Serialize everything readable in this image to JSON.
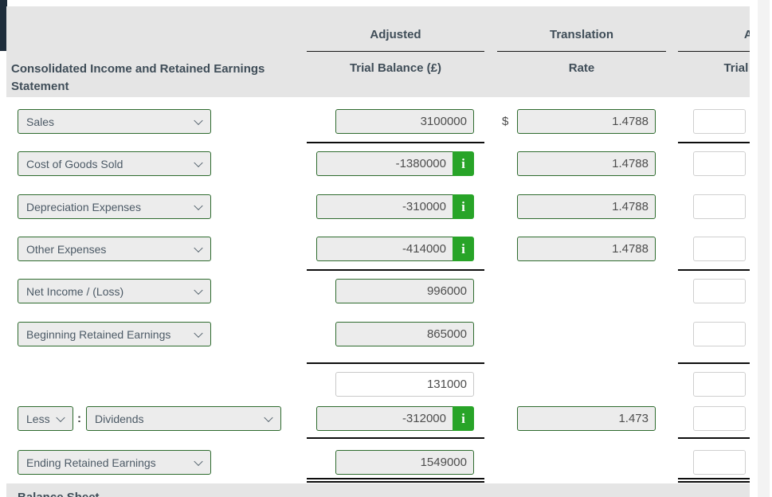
{
  "header": {
    "columns": [
      {
        "line1": "Adjusted",
        "line2": "Trial Balance (£)"
      },
      {
        "line1": "Translation",
        "line2": "Rate"
      },
      {
        "line1": "Adjusted",
        "line2": "Trial Balance ($)"
      }
    ]
  },
  "sections": {
    "income_statement_title": "Consolidated Income and Retained Earnings Statement",
    "balance_sheet_title": "Balance Sheet"
  },
  "currency_symbol": "$",
  "info_icon_glyph": "i",
  "colors": {
    "field_border_green": "#2e6b2e",
    "info_button_green": "#28a428",
    "field_background": "#ececec",
    "band_background": "#e5e5e5",
    "heading_text": "#3f4d58",
    "value_text": "#4d4d4d",
    "rule_line": "#0d0d0d"
  },
  "rows": [
    {
      "account": "Sales",
      "atb": "3100000",
      "editable": false,
      "info": false,
      "rate": "1.4788",
      "dollar_sign": true,
      "translated": ""
    },
    {
      "account": "Cost of Goods Sold",
      "atb": "-1380000",
      "editable": false,
      "info": true,
      "rate": "1.4788",
      "dollar_sign": false,
      "translated": ""
    },
    {
      "account": "Depreciation Expenses",
      "atb": "-310000",
      "editable": false,
      "info": true,
      "rate": "1.4788",
      "dollar_sign": false,
      "translated": ""
    },
    {
      "account": "Other Expenses",
      "atb": "-414000",
      "editable": false,
      "info": true,
      "rate": "1.4788",
      "dollar_sign": false,
      "translated": ""
    },
    {
      "account": "Net Income / (Loss)",
      "atb": "996000",
      "editable": false,
      "info": false,
      "rate": null,
      "dollar_sign": false,
      "translated": ""
    },
    {
      "account": "Beginning Retained Earnings",
      "atb": "865000",
      "editable": false,
      "info": false,
      "rate": null,
      "dollar_sign": false,
      "translated": ""
    },
    {
      "account": null,
      "atb": "131000",
      "editable": true,
      "info": false,
      "rate": null,
      "dollar_sign": false,
      "translated": ""
    },
    {
      "prefix": "Less",
      "separator": ":",
      "account": "Dividends",
      "atb": "-312000",
      "editable": false,
      "info": true,
      "rate": "1.473",
      "dollar_sign": false,
      "translated": ""
    },
    {
      "account": "Ending Retained Earnings",
      "atb": "1549000",
      "editable": false,
      "info": false,
      "rate": null,
      "dollar_sign": false,
      "translated": ""
    }
  ]
}
